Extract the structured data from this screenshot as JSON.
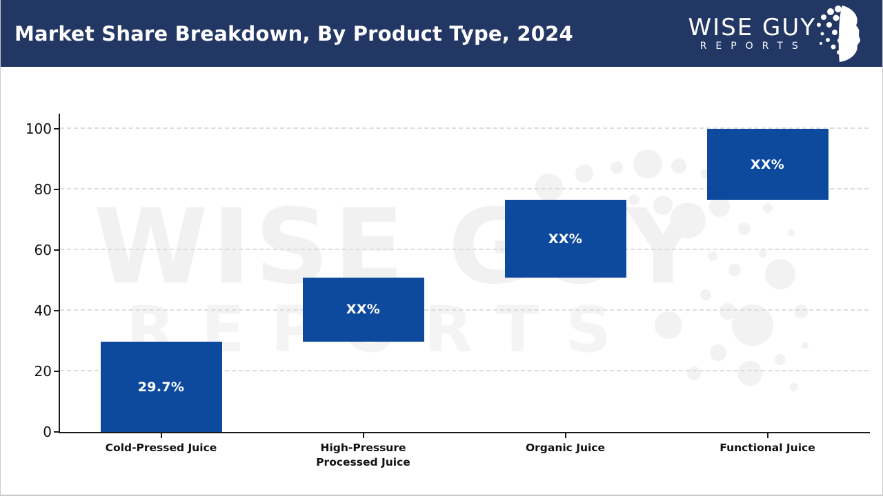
{
  "header": {
    "title": "Market Share Breakdown, By Product Type, 2024",
    "logo": {
      "line1": "WISE GUY",
      "line2": "REPORTS"
    }
  },
  "watermark": {
    "line1": "WISE GUY",
    "line2": "REPORTS"
  },
  "chart_data": {
    "type": "bar",
    "subtype": "waterfall",
    "title": "Market Share Breakdown, By Product Type, 2024",
    "categories": [
      "Cold-Pressed Juice",
      "High-Pressure\nProcessed Juice",
      "Organic Juice",
      "Functional Juice"
    ],
    "segments": [
      {
        "category": "Cold-Pressed Juice",
        "start": 0,
        "end": 29.7,
        "label": "29.7%"
      },
      {
        "category": "High-Pressure Processed Juice",
        "start": 29.7,
        "end": 51,
        "label": "XX%"
      },
      {
        "category": "Organic Juice",
        "start": 51,
        "end": 76.5,
        "label": "XX%"
      },
      {
        "category": "Functional Juice",
        "start": 76.5,
        "end": 100,
        "label": "XX%"
      }
    ],
    "ylim": [
      0,
      100
    ],
    "yticks": [
      0,
      20,
      40,
      60,
      80,
      100
    ],
    "xlabel": "",
    "ylabel": "",
    "legend": "none",
    "grid": "horizontal-dashed",
    "bar_color": "#0d4a9e",
    "colors": {
      "header_bg": "#223764",
      "axis": "#1a1a1a",
      "gridline": "#dcdcdc",
      "watermark": "#f1f1f1",
      "bar_label": "#ffffff"
    }
  }
}
